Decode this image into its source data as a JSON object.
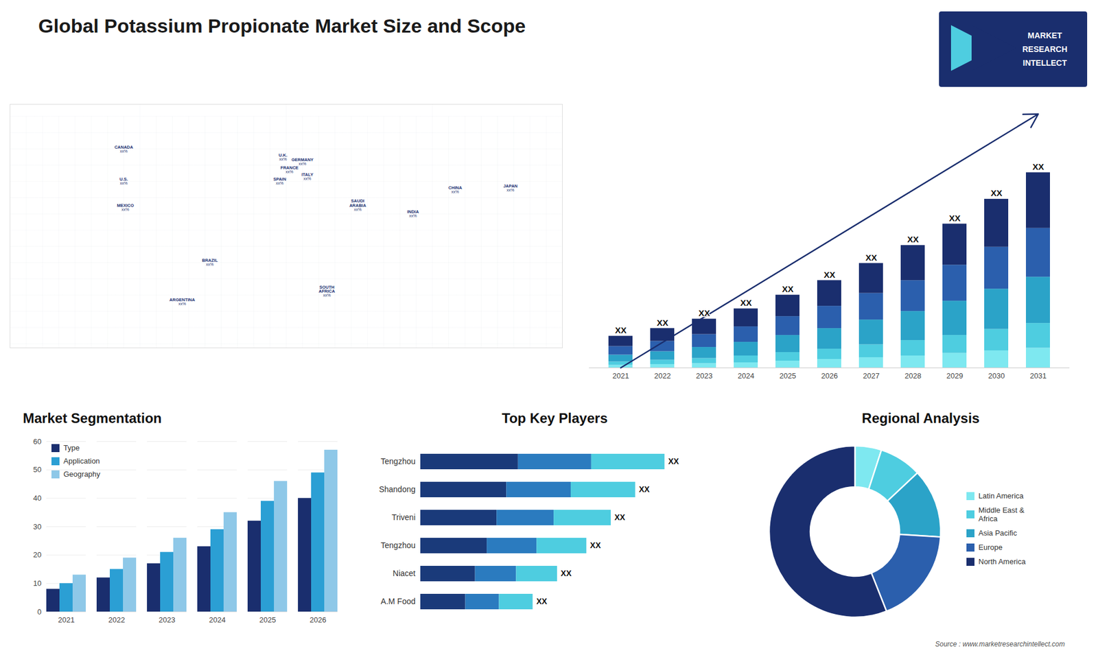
{
  "title": "Global Potassium Propionate Market Size and Scope",
  "logo": [
    "MARKET",
    "RESEARCH",
    "INTELLECT"
  ],
  "caption": "Source : www.marketresearchintellect.com",
  "chart_data": [
    {
      "type": "map",
      "color": "#1a3070",
      "xlim": [
        -170,
        170
      ],
      "ylim": [
        -60,
        85
      ],
      "labels": [
        {
          "name": "CANADA",
          "value_label": "xx%",
          "lon": -100,
          "lat": 60
        },
        {
          "name": "U.S.",
          "value_label": "xx%",
          "lon": -100,
          "lat": 40
        },
        {
          "name": "MEXICO",
          "value_label": "xx%",
          "lon": -99,
          "lat": 24
        },
        {
          "name": "BRAZIL",
          "value_label": "xx%",
          "lon": -47,
          "lat": -10
        },
        {
          "name": "ARGENTINA",
          "value_label": "xx%",
          "lon": -64,
          "lat": -34
        },
        {
          "name": "U.K.",
          "value_label": "xx%",
          "lon": -2,
          "lat": 55
        },
        {
          "name": "FRANCE",
          "value_label": "xx%",
          "lon": 2,
          "lat": 47
        },
        {
          "name": "SPAIN",
          "value_label": "xx%",
          "lon": -4,
          "lat": 40
        },
        {
          "name": "GERMANY",
          "value_label": "xx%",
          "lon": 10,
          "lat": 52
        },
        {
          "name": "ITALY",
          "value_label": "xx%",
          "lon": 13,
          "lat": 43
        },
        {
          "name": "SAUDI\nARABIA",
          "value_label": "xx%",
          "lon": 44,
          "lat": 24
        },
        {
          "name": "SOUTH\nAFRICA",
          "value_label": "xx%",
          "lon": 25,
          "lat": -29
        },
        {
          "name": "CHINA",
          "value_label": "xx%",
          "lon": 104,
          "lat": 35
        },
        {
          "name": "INDIA",
          "value_label": "xx%",
          "lon": 78,
          "lat": 20
        },
        {
          "name": "JAPAN",
          "value_label": "xx%",
          "lon": 138,
          "lat": 36
        }
      ]
    },
    {
      "type": "bar",
      "stacked": true,
      "categories": [
        "2021",
        "2022",
        "2023",
        "2024",
        "2025",
        "2026",
        "2027",
        "2028",
        "2029",
        "2030",
        "2031"
      ],
      "series": [
        {
          "color": "#7ee8f0",
          "values": [
            0.3,
            0.4,
            0.5,
            0.6,
            0.8,
            1.0,
            1.2,
            1.4,
            1.7,
            2.0,
            2.3
          ]
        },
        {
          "color": "#4ecde0",
          "values": [
            0.4,
            0.5,
            0.6,
            0.8,
            1.0,
            1.2,
            1.5,
            1.8,
            2.1,
            2.5,
            2.9
          ]
        },
        {
          "color": "#2ba3c8",
          "values": [
            0.8,
            1.0,
            1.3,
            1.6,
            2.0,
            2.4,
            2.9,
            3.4,
            4.0,
            4.7,
            5.4
          ]
        },
        {
          "color": "#2b5fad",
          "values": [
            1.0,
            1.2,
            1.5,
            1.8,
            2.2,
            2.6,
            3.1,
            3.6,
            4.2,
            4.9,
            5.7
          ]
        },
        {
          "color": "#1a2e6e",
          "values": [
            1.2,
            1.5,
            1.8,
            2.1,
            2.5,
            3.0,
            3.5,
            4.1,
            4.8,
            5.6,
            6.5
          ]
        }
      ],
      "annotations": [
        "XX",
        "XX",
        "XX",
        "XX",
        "XX",
        "XX",
        "XX",
        "XX",
        "XX",
        "XX",
        "XX"
      ],
      "ylim": [
        0,
        29.64
      ],
      "tick_labels": "x"
    },
    {
      "type": "bar",
      "title": "Market Segmentation",
      "categories": [
        "2021",
        "2022",
        "2023",
        "2024",
        "2025",
        "2026"
      ],
      "series": [
        {
          "name": "Type",
          "color": "#1a2e6e",
          "values": [
            8,
            12,
            17,
            23,
            32,
            40
          ]
        },
        {
          "name": "Application",
          "color": "#2b9fd4",
          "values": [
            10,
            15,
            21,
            29,
            39,
            49
          ]
        },
        {
          "name": "Geography",
          "color": "#8ec8e8",
          "values": [
            13,
            19,
            26,
            35,
            46,
            57
          ]
        }
      ],
      "ylim": [
        0,
        60
      ],
      "yticks": [
        0,
        10,
        20,
        30,
        40,
        50,
        60
      ],
      "grid": true,
      "legend": "upper left"
    },
    {
      "type": "bar",
      "orientation": "horizontal",
      "stacked": true,
      "title": "Top Key Players",
      "categories": [
        "Tengzhou",
        "Shandong",
        "Triveni",
        "Tengzhou",
        "Niacet",
        "A.M Food"
      ],
      "series": [
        {
          "color": "#1a3a7a",
          "values": [
            40,
            35.2,
            31.2,
            27.2,
            22.4,
            18.4
          ]
        },
        {
          "color": "#2b7bbf",
          "values": [
            30,
            26.4,
            23.4,
            20.4,
            16.8,
            13.8
          ]
        },
        {
          "color": "#4ecde0",
          "values": [
            30,
            26.4,
            23.4,
            20.4,
            16.8,
            13.8
          ]
        }
      ],
      "annotations": [
        "XX",
        "XX",
        "XX",
        "XX",
        "XX",
        "XX"
      ],
      "xlim": [
        0,
        130
      ],
      "tick_labels": "y"
    },
    {
      "type": "donut",
      "title": "Regional Analysis",
      "categories": [
        "Latin America",
        "Middle East &\nAfrica",
        "Asia Pacific",
        "Europe",
        "North America"
      ],
      "values": [
        5,
        8,
        13,
        18,
        56
      ],
      "colors": [
        "#7ee8f0",
        "#4ecde0",
        "#2ba3c8",
        "#2b5fad",
        "#1a2e6e"
      ],
      "legend": "right"
    }
  ]
}
